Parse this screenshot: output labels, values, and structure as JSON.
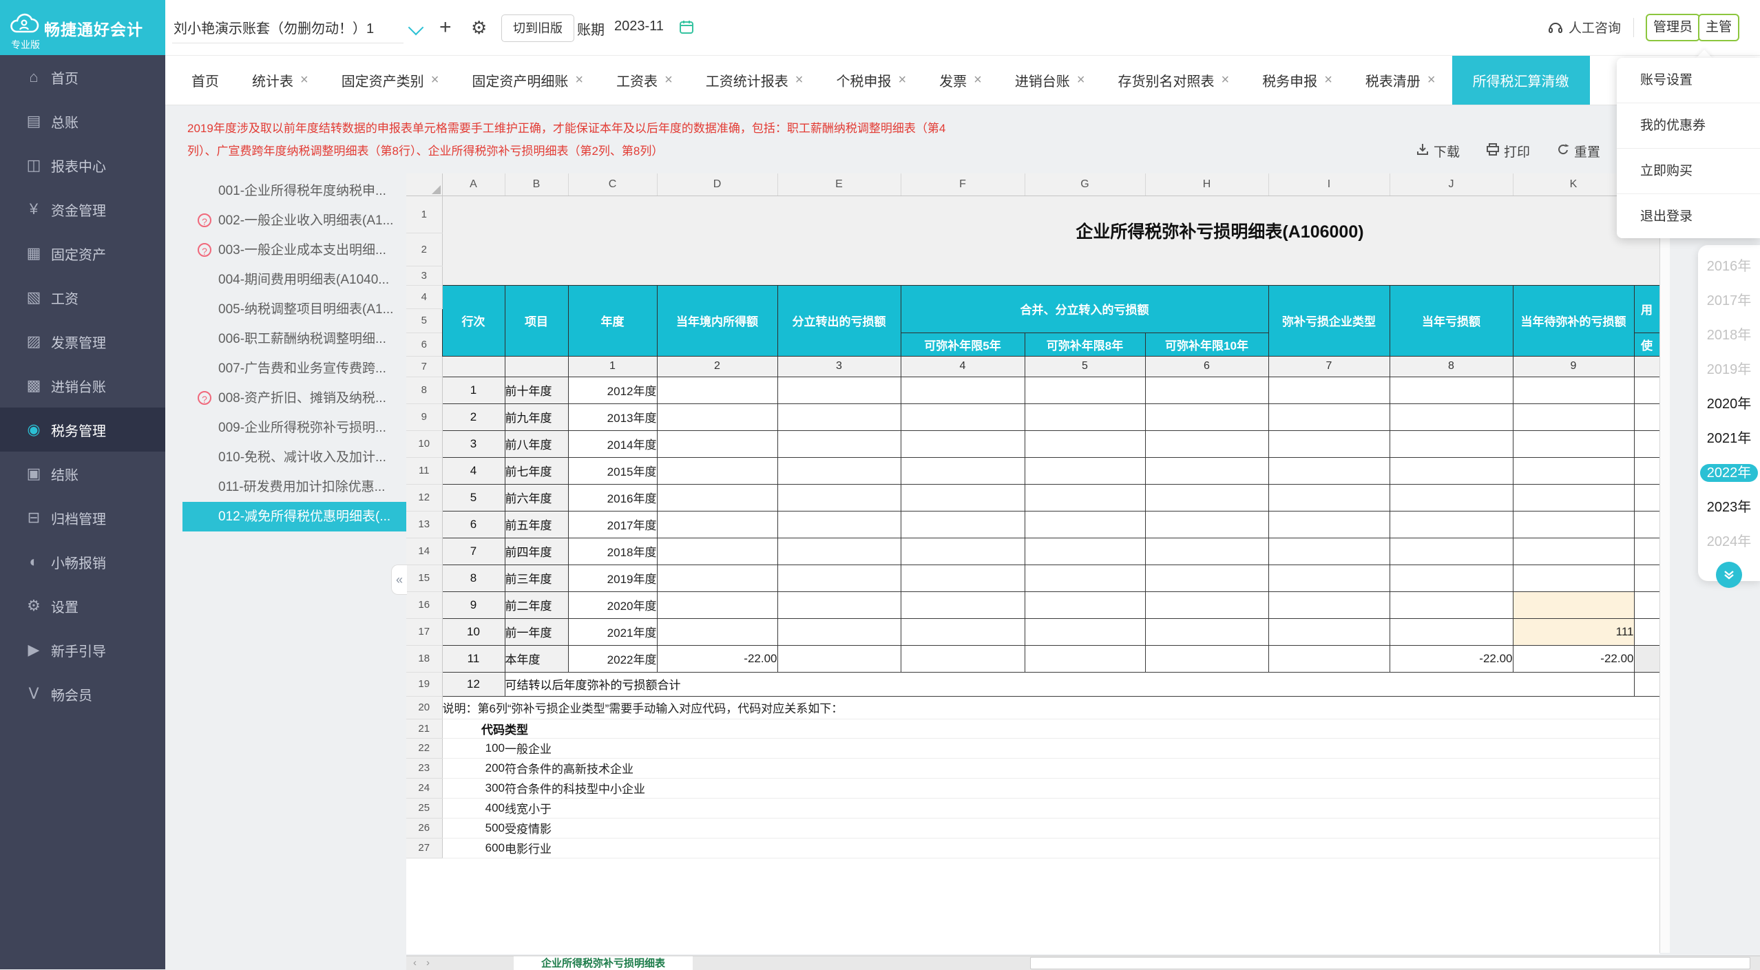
{
  "colors": {
    "brand_teal": "#2bc0d4",
    "header_teal": "#17bdd3",
    "badge_green": "#8cc63e",
    "warning_red": "#e23b34",
    "sheet_tab_green": "#1d7c4a",
    "highlight_yellow": "#fdf2dc",
    "sidebar_bg": "#3f4458",
    "sidebar_active_bg": "#2e3347"
  },
  "app": {
    "logo_title": "畅捷通好会计",
    "logo_subtitle": "专业版"
  },
  "topbar": {
    "account_name": "刘小艳演示账套（勿删勿动！）1",
    "switch_old": "切到旧版",
    "period_label": "账期",
    "period_value": "2023-11",
    "support": "人工咨询",
    "badges": [
      "管理员",
      "主管"
    ]
  },
  "tabs": {
    "items": [
      {
        "label": "首页",
        "closable": false
      },
      {
        "label": "统计表",
        "closable": true
      },
      {
        "label": "固定资产类别",
        "closable": true
      },
      {
        "label": "固定资产明细账",
        "closable": true
      },
      {
        "label": "工资表",
        "closable": true
      },
      {
        "label": "工资统计报表",
        "closable": true
      },
      {
        "label": "个税申报",
        "closable": true
      },
      {
        "label": "发票",
        "closable": true
      },
      {
        "label": "进销台账",
        "closable": true
      },
      {
        "label": "存货别名对照表",
        "closable": true
      },
      {
        "label": "税务申报",
        "closable": true
      },
      {
        "label": "税表清册",
        "closable": true
      },
      {
        "label": "所得税汇算清缴",
        "closable": false,
        "active": true
      }
    ]
  },
  "sidebar": {
    "items": [
      {
        "label": "首页",
        "icon": "home-icon"
      },
      {
        "label": "总账",
        "icon": "ledger-icon"
      },
      {
        "label": "报表中心",
        "icon": "report-center-icon"
      },
      {
        "label": "资金管理",
        "icon": "funds-icon"
      },
      {
        "label": "固定资产",
        "icon": "fixed-assets-icon"
      },
      {
        "label": "工资",
        "icon": "salary-icon"
      },
      {
        "label": "发票管理",
        "icon": "invoice-icon"
      },
      {
        "label": "进销台账",
        "icon": "purchase-sales-icon"
      },
      {
        "label": "税务管理",
        "icon": "tax-icon",
        "active": true
      },
      {
        "label": "结账",
        "icon": "closing-icon"
      },
      {
        "label": "归档管理",
        "icon": "archive-icon"
      },
      {
        "label": "小畅报销",
        "icon": "reimburse-icon"
      },
      {
        "label": "设置",
        "icon": "settings-icon"
      },
      {
        "label": "新手引导",
        "icon": "guide-icon"
      },
      {
        "label": "畅会员",
        "icon": "member-icon"
      }
    ]
  },
  "warning": {
    "lines": [
      "2019年度涉及取以前年度结转数据的申报表单元格需要手工维护正确，才能保证本年及以后年度的数据准确，包括：职工薪酬纳税调整明细表（第4",
      "列）、广宣费跨年度纳税调整明细表（第8行）、企业所得税弥补亏损明细表（第2列、第8列）"
    ]
  },
  "toolbar": {
    "items": [
      {
        "label": "下载",
        "icon": "download-icon"
      },
      {
        "label": "打印",
        "icon": "print-icon"
      },
      {
        "label": "重置",
        "icon": "reset-icon"
      }
    ]
  },
  "reports": {
    "items": [
      {
        "label": "001-企业所得税年度纳税申...",
        "help": false
      },
      {
        "label": "002-一般企业收入明细表(A1...",
        "help": true
      },
      {
        "label": "003-一般企业成本支出明细...",
        "help": true
      },
      {
        "label": "004-期间费用明细表(A1040...",
        "help": false
      },
      {
        "label": "005-纳税调整项目明细表(A1...",
        "help": false
      },
      {
        "label": "006-职工薪酬纳税调整明细...",
        "help": false
      },
      {
        "label": "007-广告费和业务宣传费跨...",
        "help": false
      },
      {
        "label": "008-资产折旧、摊销及纳税...",
        "help": true
      },
      {
        "label": "009-企业所得税弥补亏损明...",
        "help": false
      },
      {
        "label": "010-免税、减计收入及加计...",
        "help": false
      },
      {
        "label": "011-研发费用加计扣除优惠...",
        "help": false
      },
      {
        "label": "012-减免所得税优惠明细表(...",
        "help": false,
        "active": true
      }
    ]
  },
  "sheet": {
    "title": "企业所得税弥补亏损明细表(A106000)",
    "col_letters": [
      "A",
      "B",
      "C",
      "D",
      "E",
      "F",
      "G",
      "H",
      "I",
      "J",
      "K"
    ],
    "row_numbers": [
      "1",
      "2",
      "3",
      "4",
      "5",
      "6",
      "7",
      "8",
      "9",
      "10",
      "11",
      "12",
      "13",
      "14",
      "15",
      "16",
      "17",
      "18",
      "19",
      "20",
      "21",
      "22",
      "23",
      "24",
      "25",
      "26",
      "27"
    ],
    "header": {
      "hangci": "行次",
      "xiangmu": "项目",
      "niandu": "年度",
      "col_d": "当年境内所得额",
      "col_e": "分立转出的亏损额",
      "merge_fgh": "合并、分立转入的亏损额",
      "sub_f": "可弥补年限5年",
      "sub_g": "可弥补年限8年",
      "sub_h": "可弥补年限10年",
      "col_i": "弥补亏损企业类型",
      "col_j": "当年亏损额",
      "col_k": "当年待弥补的亏损额",
      "partial_top": "用",
      "partial_sub": "使",
      "index_row": [
        "1",
        "2",
        "3",
        "4",
        "5",
        "6",
        "7",
        "8",
        "9"
      ]
    },
    "rows": [
      {
        "num": "8",
        "line": "1",
        "item": "前十年度",
        "year": "2012年度",
        "d": "",
        "j": "",
        "k": "",
        "k_hl": false
      },
      {
        "num": "9",
        "line": "2",
        "item": "前九年度",
        "year": "2013年度",
        "d": "",
        "j": "",
        "k": "",
        "k_hl": false
      },
      {
        "num": "10",
        "line": "3",
        "item": "前八年度",
        "year": "2014年度",
        "d": "",
        "j": "",
        "k": "",
        "k_hl": false
      },
      {
        "num": "11",
        "line": "4",
        "item": "前七年度",
        "year": "2015年度",
        "d": "",
        "j": "",
        "k": "",
        "k_hl": false
      },
      {
        "num": "12",
        "line": "5",
        "item": "前六年度",
        "year": "2016年度",
        "d": "",
        "j": "",
        "k": "",
        "k_hl": false
      },
      {
        "num": "13",
        "line": "6",
        "item": "前五年度",
        "year": "2017年度",
        "d": "",
        "j": "",
        "k": "",
        "k_hl": false
      },
      {
        "num": "14",
        "line": "7",
        "item": "前四年度",
        "year": "2018年度",
        "d": "",
        "j": "",
        "k": "",
        "k_hl": false
      },
      {
        "num": "15",
        "line": "8",
        "item": "前三年度",
        "year": "2019年度",
        "d": "",
        "j": "",
        "k": "",
        "k_hl": false
      },
      {
        "num": "16",
        "line": "9",
        "item": "前二年度",
        "year": "2020年度",
        "d": "",
        "j": "",
        "k": "",
        "k_hl": true
      },
      {
        "num": "17",
        "line": "10",
        "item": "前一年度",
        "year": "2021年度",
        "d": "",
        "j": "",
        "k": "111",
        "k_hl": true
      },
      {
        "num": "18",
        "line": "11",
        "item": "本年度",
        "year": "2022年度",
        "d": "-22.00",
        "j": "-22.00",
        "k": "-22.00",
        "k_hl": false,
        "last": true
      }
    ],
    "summary_row": {
      "line": "12",
      "label": "可结转以后年度弥补的亏损额合计"
    },
    "note": "说明：第6列“弥补亏损企业类型”需要手动输入对应代码，代码对应关系如下：",
    "code_header": {
      "code": "代码",
      "type": "类型"
    },
    "codes": [
      {
        "num": "22",
        "code": "100",
        "type": "一般企业"
      },
      {
        "num": "23",
        "code": "200",
        "type": "符合条件的高新技术企业"
      },
      {
        "num": "24",
        "code": "300",
        "type": "符合条件的科技型中小企业"
      },
      {
        "num": "25",
        "code": "400",
        "type": "线宽小于"
      },
      {
        "num": "26",
        "code": "500",
        "type": "受疫情影"
      },
      {
        "num": "27",
        "code": "600",
        "type": "电影行业"
      }
    ]
  },
  "years": {
    "items": [
      {
        "label": "2016年",
        "state": "dim"
      },
      {
        "label": "2017年",
        "state": "dim"
      },
      {
        "label": "2018年",
        "state": "dim"
      },
      {
        "label": "2019年",
        "state": "dim"
      },
      {
        "label": "2020年",
        "state": "normal"
      },
      {
        "label": "2021年",
        "state": "normal"
      },
      {
        "label": "2022年",
        "state": "active"
      },
      {
        "label": "2023年",
        "state": "normal"
      },
      {
        "label": "2024年",
        "state": "dim"
      }
    ]
  },
  "dropdown": {
    "items": [
      "账号设置",
      "我的优惠券",
      "立即购买",
      "退出登录"
    ]
  },
  "bottom": {
    "sheet_tab": "企业所得税弥补亏损明细表"
  }
}
